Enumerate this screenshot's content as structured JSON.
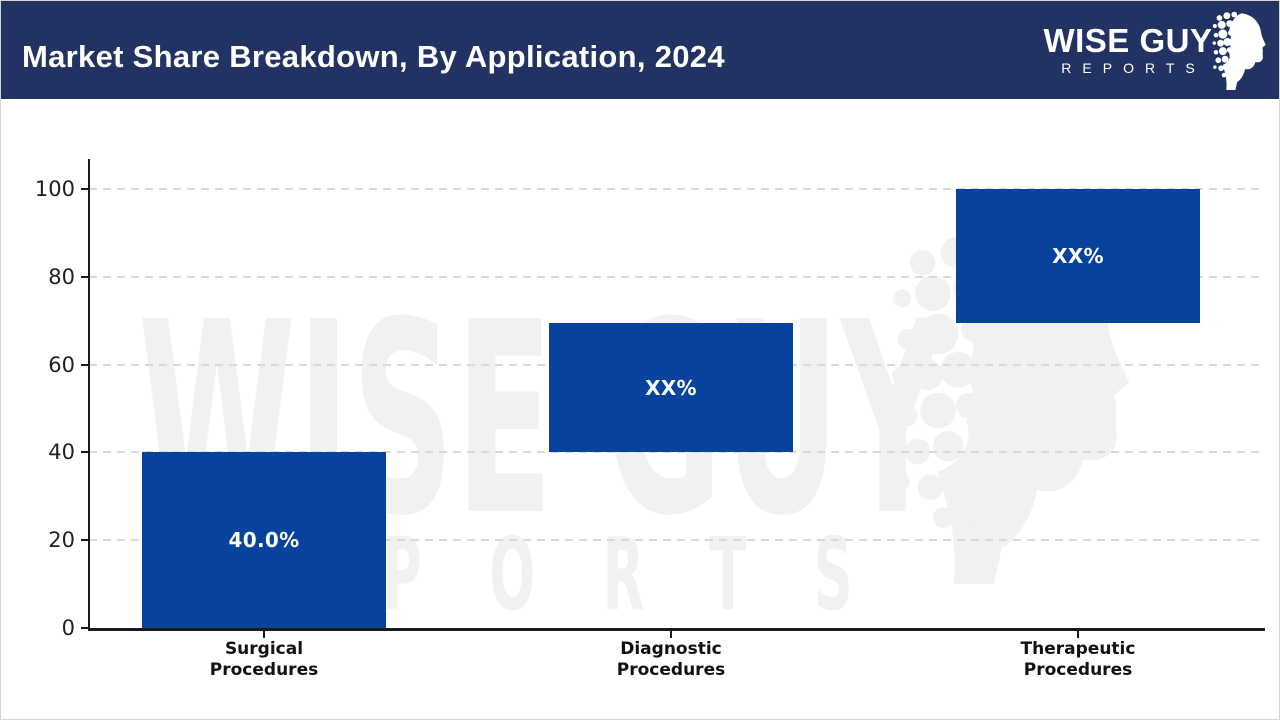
{
  "header": {
    "title": "Market Share Breakdown, By Application, 2024",
    "logo": {
      "brand": "WISE GUY",
      "sub": "REPORTS"
    }
  },
  "watermark": {
    "brand": "WISE GUY",
    "sub": "REPORTS"
  },
  "chart_data": {
    "type": "bar",
    "variant": "waterfall",
    "title": "Market Share Breakdown, By Application, 2024",
    "categories": [
      "Surgical Procedures",
      "Diagnostic Procedures",
      "Therapeutic Procedures"
    ],
    "segments": [
      {
        "category": "Surgical Procedures",
        "start": 0,
        "end": 40,
        "label": "40.0%"
      },
      {
        "category": "Diagnostic Procedures",
        "start": 40,
        "end": 69.5,
        "label": "XX%"
      },
      {
        "category": "Therapeutic Procedures",
        "start": 69.5,
        "end": 100,
        "label": "XX%"
      }
    ],
    "xlabel": "",
    "ylabel": "",
    "ylim": [
      0,
      100
    ],
    "yticks": [
      0,
      20,
      40,
      60,
      80,
      100
    ],
    "grid": "horizontal-dashed",
    "legend": "none",
    "colors": {
      "bar": "#07429c",
      "bar_label": "#ffffff",
      "header_bg": "#223363",
      "grid": "#d9d9d9",
      "axis": "#1a1a1a",
      "watermark": "#f1f1f2"
    }
  }
}
